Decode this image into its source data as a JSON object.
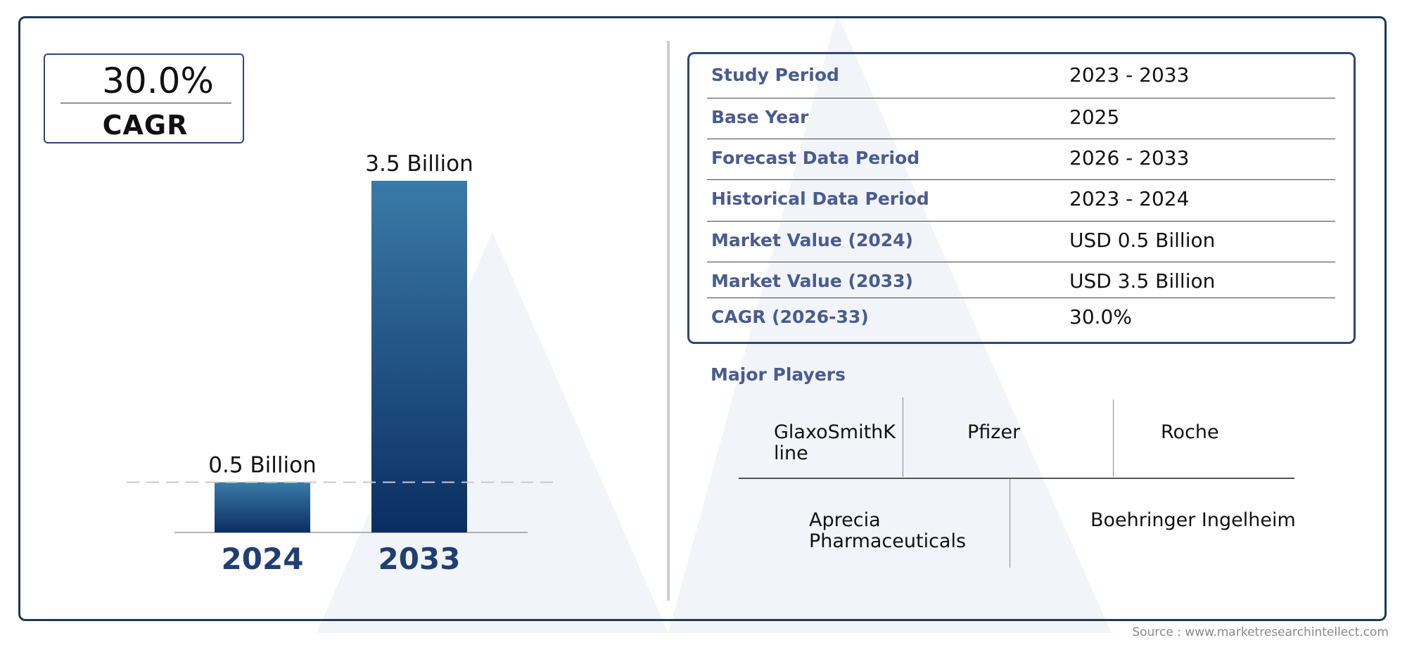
{
  "colors": {
    "bar_top": "#3a7aa8",
    "bar_bottom": "#0b2e62",
    "frame": "#1d3a52",
    "accent_text": "#4a5b8f",
    "watermark": "#eef1f6"
  },
  "cagr": {
    "value": "30.0%",
    "label": "CAGR"
  },
  "chart_data": {
    "type": "bar",
    "categories": [
      "2024",
      "2033"
    ],
    "values": [
      0.5,
      3.5
    ],
    "data_labels": [
      "0.5 Billion",
      "3.5 Billion"
    ],
    "unit": "Billion",
    "ylim": [
      0,
      3.5
    ],
    "grid": false,
    "reference_line": "dashed line at the 2024 value"
  },
  "info_table": [
    {
      "key": "Study Period",
      "value": "2023 - 2033"
    },
    {
      "key": "Base Year",
      "value": "2025"
    },
    {
      "key": "Forecast Data Period",
      "value": "2026 - 2033"
    },
    {
      "key": "Historical Data Period",
      "value": "2023 - 2024"
    },
    {
      "key": "Market Value (2024)",
      "value": "USD 0.5 Billion"
    },
    {
      "key": "Market Value (2033)",
      "value": "USD 3.5 Billion"
    },
    {
      "key": "CAGR (2026-33)",
      "value": "30.0%"
    }
  ],
  "players": {
    "title": "Major Players",
    "names": [
      "GlaxoSmithK\nline",
      "Pfizer",
      "Roche",
      "Aprecia\nPharmaceuticals",
      "Boehringer Ingelheim"
    ]
  },
  "source": "Source : www.marketresearchintellect.com"
}
